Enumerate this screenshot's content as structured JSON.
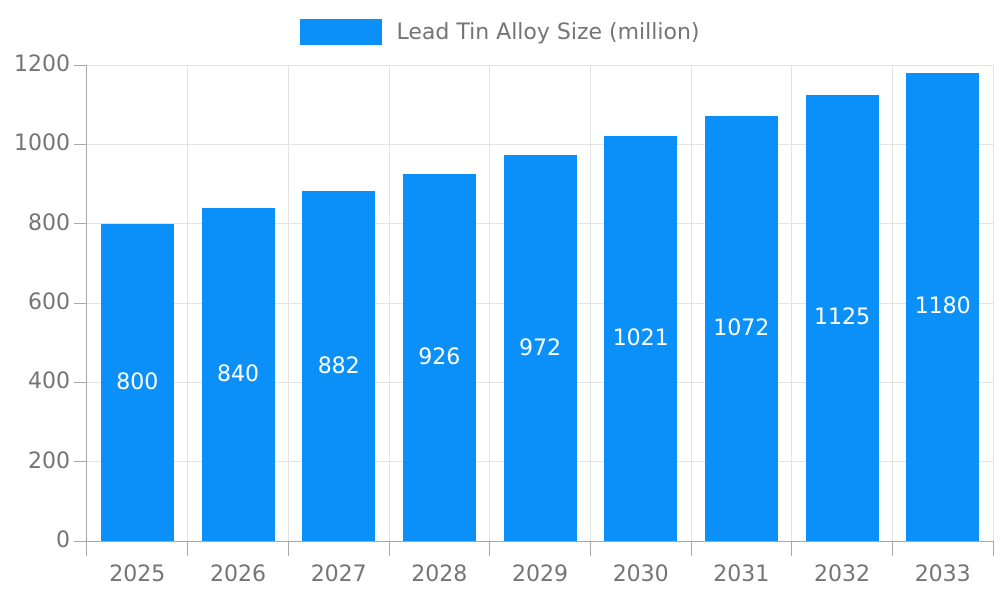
{
  "chart_data": {
    "type": "bar",
    "title": "",
    "series_name": "Lead Tin Alloy Size (million)",
    "legend_position": "top-center",
    "categories": [
      "2025",
      "2026",
      "2027",
      "2028",
      "2029",
      "2030",
      "2031",
      "2032",
      "2033"
    ],
    "values": [
      800,
      840,
      882,
      926,
      972,
      1021,
      1072,
      1125,
      1180
    ],
    "value_labels": [
      "800",
      "840",
      "882",
      "926",
      "972",
      "1021",
      "1072",
      "1125",
      "1180"
    ],
    "value_label_style": "white text centered inside bars",
    "xlabel": "",
    "ylabel": "",
    "ylim": [
      0,
      1200
    ],
    "yticks": [
      0,
      200,
      400,
      600,
      800,
      1000,
      1200
    ],
    "ytick_labels": [
      "0",
      "200",
      "400",
      "600",
      "800",
      "1000",
      "1200"
    ],
    "grid": true,
    "colors": {
      "bar": "#0a90f8",
      "axis_text": "#757575",
      "grid_line": "#e3e3e3",
      "axis_line": "#a8a8a8",
      "bar_label_text": "#ffffff",
      "background": "#ffffff"
    }
  }
}
